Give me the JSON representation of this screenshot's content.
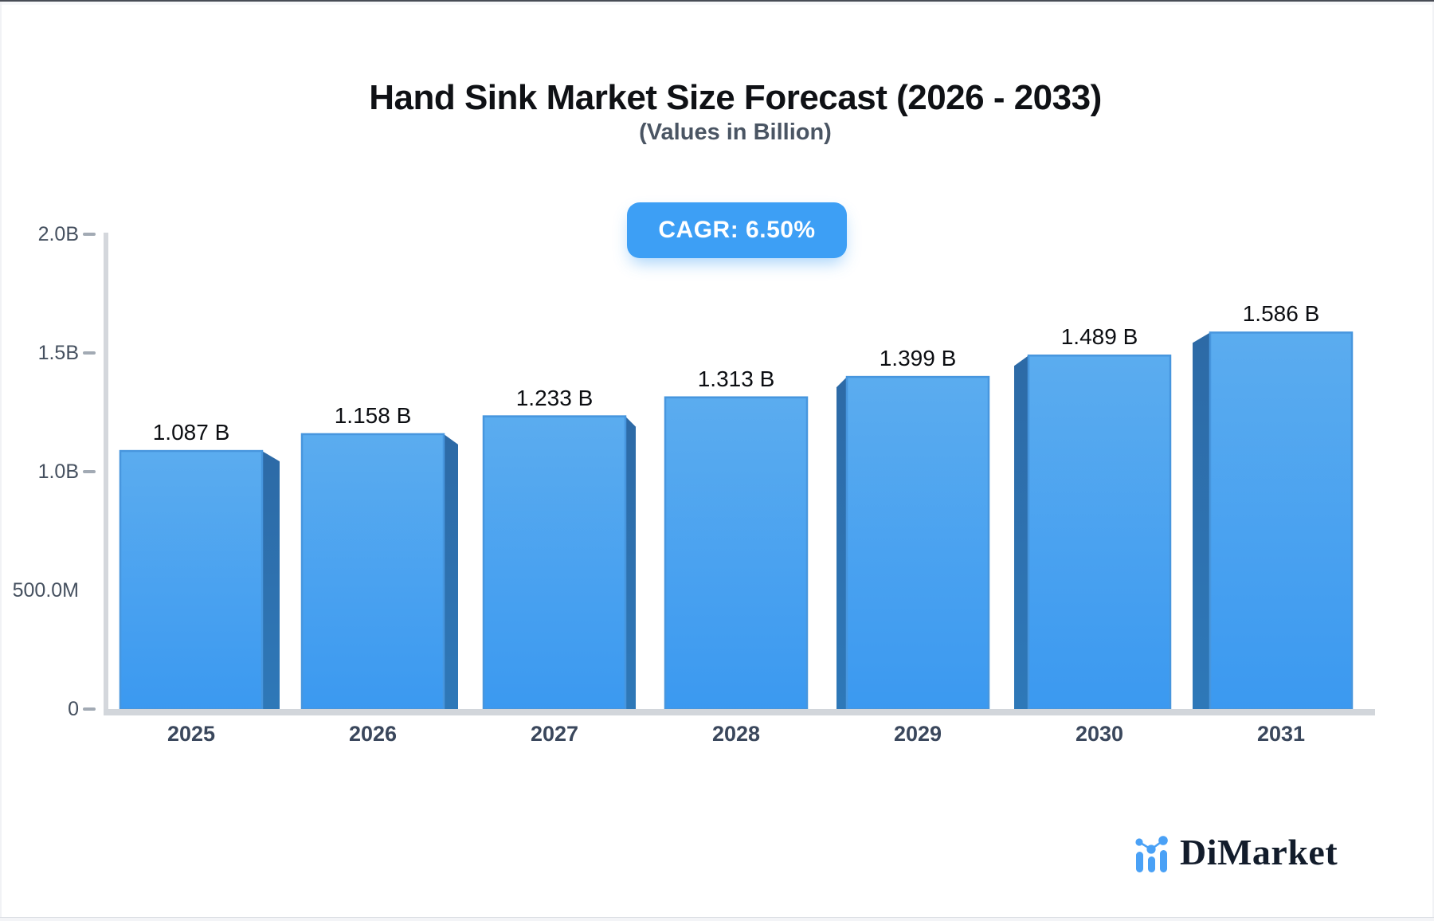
{
  "page": {
    "title": "Hand Sink Market Size Forecast (2026 - 2033)",
    "subtitle": "(Values in Billion)",
    "badge": "CAGR: 6.50%",
    "brand": "DiMarket"
  },
  "colors": {
    "badge_bg": "#3d9ff5",
    "bar_face_top": "#5bacef",
    "bar_face_bottom": "#3b99f0",
    "bar_edge": "#4796de",
    "bar_side": "#2e76b4",
    "axis_line": "#d4d7dc",
    "tick_dash": "#a2aab4",
    "value_text": "#0c0e12",
    "axis_text": "#45505f",
    "x_label_text": "#3a475c",
    "logo_icon_blue": "#4aa1f6",
    "logo_text_navy": "#121c2b"
  },
  "chart_data": {
    "type": "bar",
    "title": "Hand Sink Market Size Forecast (2026 - 2033)",
    "subtitle": "(Values in Billion)",
    "annotation": "CAGR: 6.50%",
    "categories": [
      "2025",
      "2026",
      "2027",
      "2028",
      "2029",
      "2030",
      "2031"
    ],
    "values": [
      1.087,
      1.158,
      1.233,
      1.313,
      1.399,
      1.489,
      1.586
    ],
    "value_labels": [
      "1.087 B",
      "1.158 B",
      "1.233 B",
      "1.313 B",
      "1.399 B",
      "1.489 B",
      "1.586 B"
    ],
    "unit": "B",
    "ylim": [
      0,
      2
    ],
    "y_ticks": [
      {
        "label": "2.0B",
        "value": 2.0,
        "dash": true
      },
      {
        "label": "1.5B",
        "value": 1.5,
        "dash": true
      },
      {
        "label": "1.0B",
        "value": 1.0,
        "dash": true
      },
      {
        "label": "500.0M",
        "value": 0.5,
        "dash": false
      },
      {
        "label": "0",
        "value": 0,
        "dash": true
      }
    ],
    "grid": false,
    "legend": false,
    "bar_style": "pseudo-3d, side shading faces outward from center bar"
  }
}
